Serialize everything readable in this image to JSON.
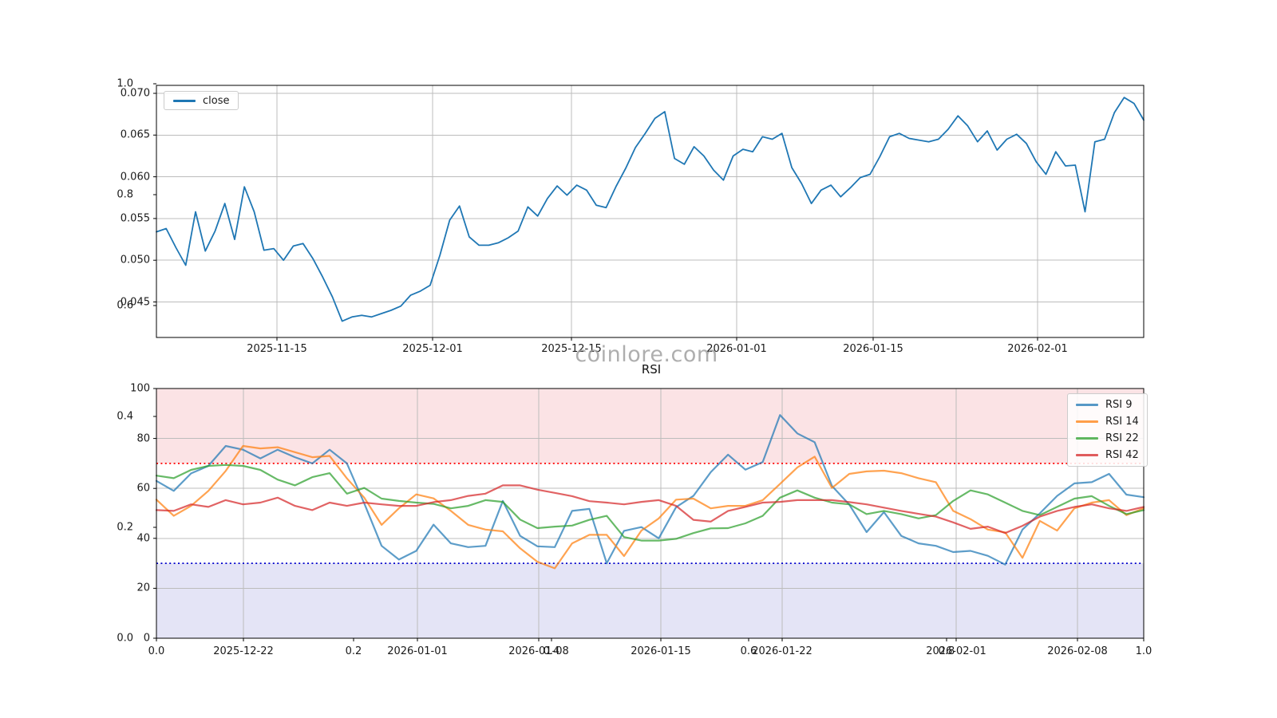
{
  "watermark": "coinlore.com",
  "overlay_axis": {
    "x_tick_labels": [
      "0.0",
      "0.2",
      "0.4",
      "0.6",
      "0.8",
      "1.0"
    ],
    "y_tick_labels": [
      "1.0",
      "0.8",
      "0.6",
      "0.4",
      "0.2",
      "0.0"
    ]
  },
  "colors": {
    "close": "#1f77b4",
    "rsi9": "#1f77b4",
    "rsi14": "#ff7f0e",
    "rsi22": "#2ca02c",
    "rsi42": "#d62728",
    "overbought_line": "#ff0000",
    "oversold_line": "#0000cc",
    "overbought_band": "#fbe3e5",
    "oversold_band": "#e4e4f6",
    "grid": "#bcbcbc",
    "spine": "#000000",
    "watermark": "#9b9b9b"
  },
  "chart_data": [
    {
      "type": "line",
      "panel": "price",
      "title": "",
      "start_date": "2025-11-03",
      "end_date": "2026-02-12",
      "freq": "daily",
      "ylim": [
        0.0407,
        0.071
      ],
      "grid": true,
      "y_tick_values": [
        0.07,
        0.065,
        0.06,
        0.055,
        0.05,
        0.045
      ],
      "y_tick_labels": [
        "0.070",
        "0.065",
        "0.060",
        "0.055",
        "0.050",
        "0.045"
      ],
      "x_tick_labels": [
        "2025-11-15",
        "2025-12-01",
        "2025-12-15",
        "2026-01-01",
        "2026-01-15",
        "2026-02-01"
      ],
      "legend": [
        "close"
      ],
      "legend_position": "upper left",
      "series": [
        {
          "name": "close",
          "color": "#1f77b4",
          "values": [
            0.0534,
            0.0538,
            0.0515,
            0.0494,
            0.0558,
            0.0511,
            0.0535,
            0.0568,
            0.0525,
            0.0588,
            0.0558,
            0.0512,
            0.0514,
            0.05,
            0.0517,
            0.052,
            0.0502,
            0.048,
            0.0456,
            0.0427,
            0.0432,
            0.0434,
            0.0432,
            0.0436,
            0.044,
            0.0445,
            0.0458,
            0.0463,
            0.047,
            0.0506,
            0.0548,
            0.0565,
            0.0528,
            0.0518,
            0.0518,
            0.0521,
            0.0527,
            0.0535,
            0.0564,
            0.0553,
            0.0574,
            0.0589,
            0.0578,
            0.059,
            0.0584,
            0.0566,
            0.0563,
            0.0588,
            0.061,
            0.0635,
            0.0652,
            0.067,
            0.0678,
            0.0622,
            0.0615,
            0.0636,
            0.0625,
            0.0608,
            0.0596,
            0.0625,
            0.0633,
            0.063,
            0.0648,
            0.0645,
            0.0652,
            0.0611,
            0.0592,
            0.0568,
            0.0584,
            0.059,
            0.0576,
            0.0587,
            0.0599,
            0.0603,
            0.0624,
            0.0648,
            0.0652,
            0.0646,
            0.0644,
            0.0642,
            0.0645,
            0.0657,
            0.0673,
            0.0661,
            0.0642,
            0.0655,
            0.0632,
            0.0645,
            0.0651,
            0.064,
            0.0618,
            0.0603,
            0.063,
            0.0613,
            0.0614,
            0.0558,
            0.0642,
            0.0645,
            0.0677,
            0.0695,
            0.0688,
            0.0668
          ]
        }
      ]
    },
    {
      "type": "line",
      "panel": "rsi",
      "title": "RSI",
      "start_date": "2025-12-17",
      "end_date": "2026-02-12",
      "freq": "daily",
      "ylim": [
        0,
        100
      ],
      "grid": true,
      "y_tick_values": [
        100,
        80,
        60,
        40,
        20,
        0
      ],
      "y_tick_labels": [
        "100",
        "80",
        "60",
        "40",
        "20",
        "0"
      ],
      "x_tick_labels": [
        "2025-12-22",
        "2026-01-01",
        "2026-01-08",
        "2026-01-15",
        "2026-01-22",
        "2026-02-01",
        "2026-02-08"
      ],
      "legend": [
        "RSI 9",
        "RSI 14",
        "RSI 22",
        "RSI 42"
      ],
      "legend_position": "upper right",
      "thresholds": {
        "overbought": 70,
        "oversold": 30
      },
      "bands": [
        {
          "from": 70,
          "to": 100,
          "color": "#fbe3e5",
          "meaning": "overbought"
        },
        {
          "from": 0,
          "to": 30,
          "color": "#e4e4f6",
          "meaning": "oversold"
        }
      ],
      "series": [
        {
          "name": "RSI 9",
          "color": "#1f77b4",
          "values": [
            63,
            59,
            66,
            69,
            77,
            75.5,
            72,
            75.5,
            72.5,
            70,
            75.5,
            70,
            54,
            37,
            31.5,
            35,
            45.5,
            38,
            36.5,
            37,
            55,
            41,
            36.8,
            36.5,
            51,
            51.8,
            30,
            43,
            44.5,
            40,
            52.5,
            57,
            66.5,
            73.5,
            67.5,
            70.5,
            89.4,
            82,
            78.5,
            61,
            53.5,
            42.5,
            50.5,
            41,
            38,
            37,
            34.5,
            35,
            33,
            29.5,
            43.5,
            50,
            57,
            62,
            62.5,
            65.8,
            57.5,
            56.5
          ]
        },
        {
          "name": "RSI 14",
          "color": "#ff7f0e",
          "values": [
            55.5,
            49,
            53,
            59,
            67,
            77,
            76,
            76.5,
            74.5,
            72.5,
            73,
            64,
            56.3,
            45.4,
            52,
            57.6,
            56,
            51,
            45.4,
            43.5,
            42.8,
            36,
            30.6,
            28,
            38,
            41.4,
            41.4,
            32.9,
            43.1,
            48,
            55.5,
            55.9,
            52,
            53,
            53,
            55.3,
            61.8,
            68.4,
            72.7,
            60.2,
            65.8,
            66.8,
            67.1,
            66.1,
            64.1,
            62.5,
            51,
            47.7,
            43.5,
            42.4,
            32.2,
            47,
            43.1,
            52,
            54.3,
            55.3,
            49.3,
            52
          ]
        },
        {
          "name": "RSI 22",
          "color": "#2ca02c",
          "values": [
            65.1,
            64.1,
            67.4,
            69,
            69.4,
            69,
            67.4,
            63.5,
            61.2,
            64.5,
            66.1,
            57.9,
            60.2,
            55.9,
            55,
            54.3,
            53.8,
            52,
            53,
            55.3,
            54.6,
            47.5,
            44.1,
            44.7,
            45.1,
            47.4,
            49,
            40.5,
            39.1,
            39.1,
            39.8,
            42.1,
            44,
            44.1,
            46,
            49,
            56.3,
            59.2,
            56.3,
            54.3,
            53.6,
            49.7,
            51,
            49.7,
            48,
            49.3,
            55,
            59.2,
            57.6,
            54.3,
            51,
            49.3,
            52.6,
            55.9,
            56.9,
            53,
            49.7,
            51.3
          ]
        },
        {
          "name": "RSI 42",
          "color": "#d62728",
          "values": [
            51.3,
            51,
            53.6,
            52.6,
            55.3,
            53.6,
            54.3,
            56.3,
            53,
            51.3,
            54.3,
            53,
            54.3,
            53.6,
            53,
            53,
            54.5,
            55.3,
            57,
            57.9,
            61.2,
            61.2,
            59.5,
            58.2,
            56.9,
            54.9,
            54.3,
            53.6,
            54.6,
            55.3,
            53,
            47.4,
            46.7,
            51,
            52.6,
            54.3,
            54.6,
            55.3,
            55.3,
            55.3,
            54.5,
            53.6,
            52.3,
            51,
            49.8,
            48.7,
            46.4,
            43.8,
            44.7,
            42.1,
            45,
            48.7,
            51,
            52.6,
            53.6,
            52,
            51,
            52.6
          ]
        }
      ]
    }
  ]
}
